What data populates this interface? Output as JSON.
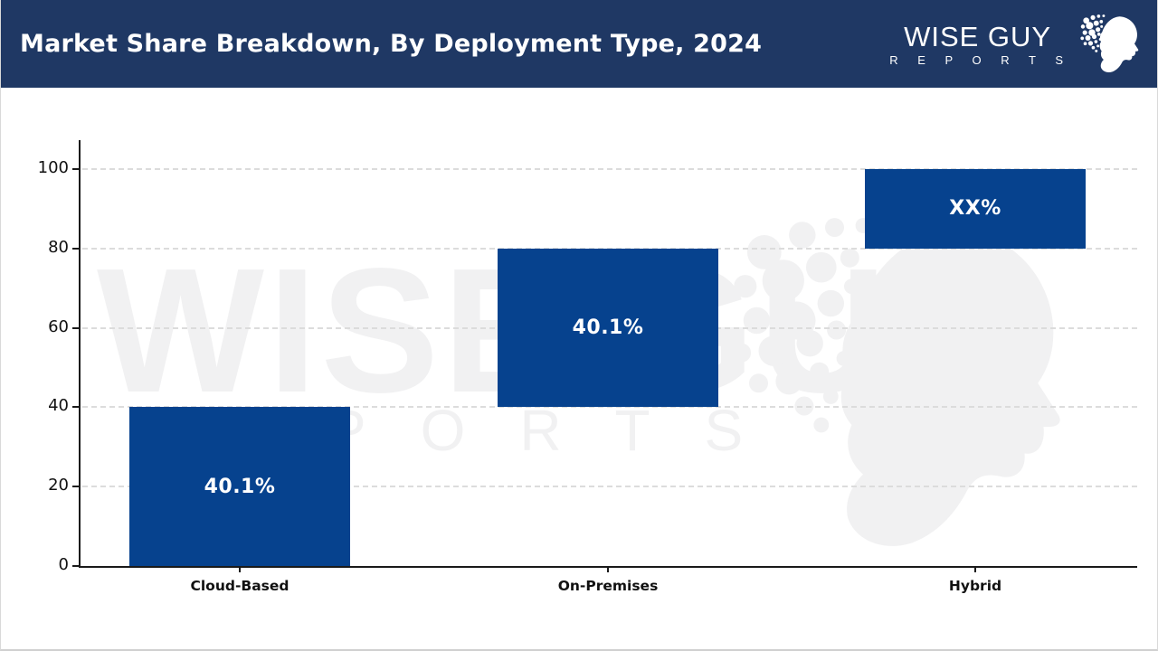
{
  "header": {
    "title": "Market Share Breakdown, By Deployment Type, 2024",
    "logo": {
      "line1": "WISE GUY",
      "line2": "R E P O R T S"
    }
  },
  "watermark": {
    "line1": "WISE GUY",
    "line2": "REPORTS"
  },
  "colors": {
    "header_bg": "#1F3864",
    "bar": "#06428E",
    "gridline": "#DCDCDC",
    "axis": "#1A1A1A",
    "watermark": "#F1F1F2",
    "value_label": "#FFFFFF"
  },
  "chart_data": {
    "type": "bar",
    "subtype": "floating-segment-waterfall",
    "title": "Market Share Breakdown, By Deployment Type, 2024",
    "categories": [
      "Cloud-Based",
      "On-Premises",
      "Hybrid"
    ],
    "bars": [
      {
        "category": "Cloud-Based",
        "start": 0,
        "end": 40,
        "label": "40.1%"
      },
      {
        "category": "On-Premises",
        "start": 40,
        "end": 80,
        "label": "40.1%"
      },
      {
        "category": "Hybrid",
        "start": 80,
        "end": 100,
        "label": "XX%"
      }
    ],
    "ylim": [
      0,
      100
    ],
    "yticks": [
      0,
      20,
      40,
      60,
      80,
      100
    ],
    "xlabel": "",
    "ylabel": "",
    "grid": "horizontal-dashed",
    "legend": "none",
    "bar_color": "#06428E"
  }
}
